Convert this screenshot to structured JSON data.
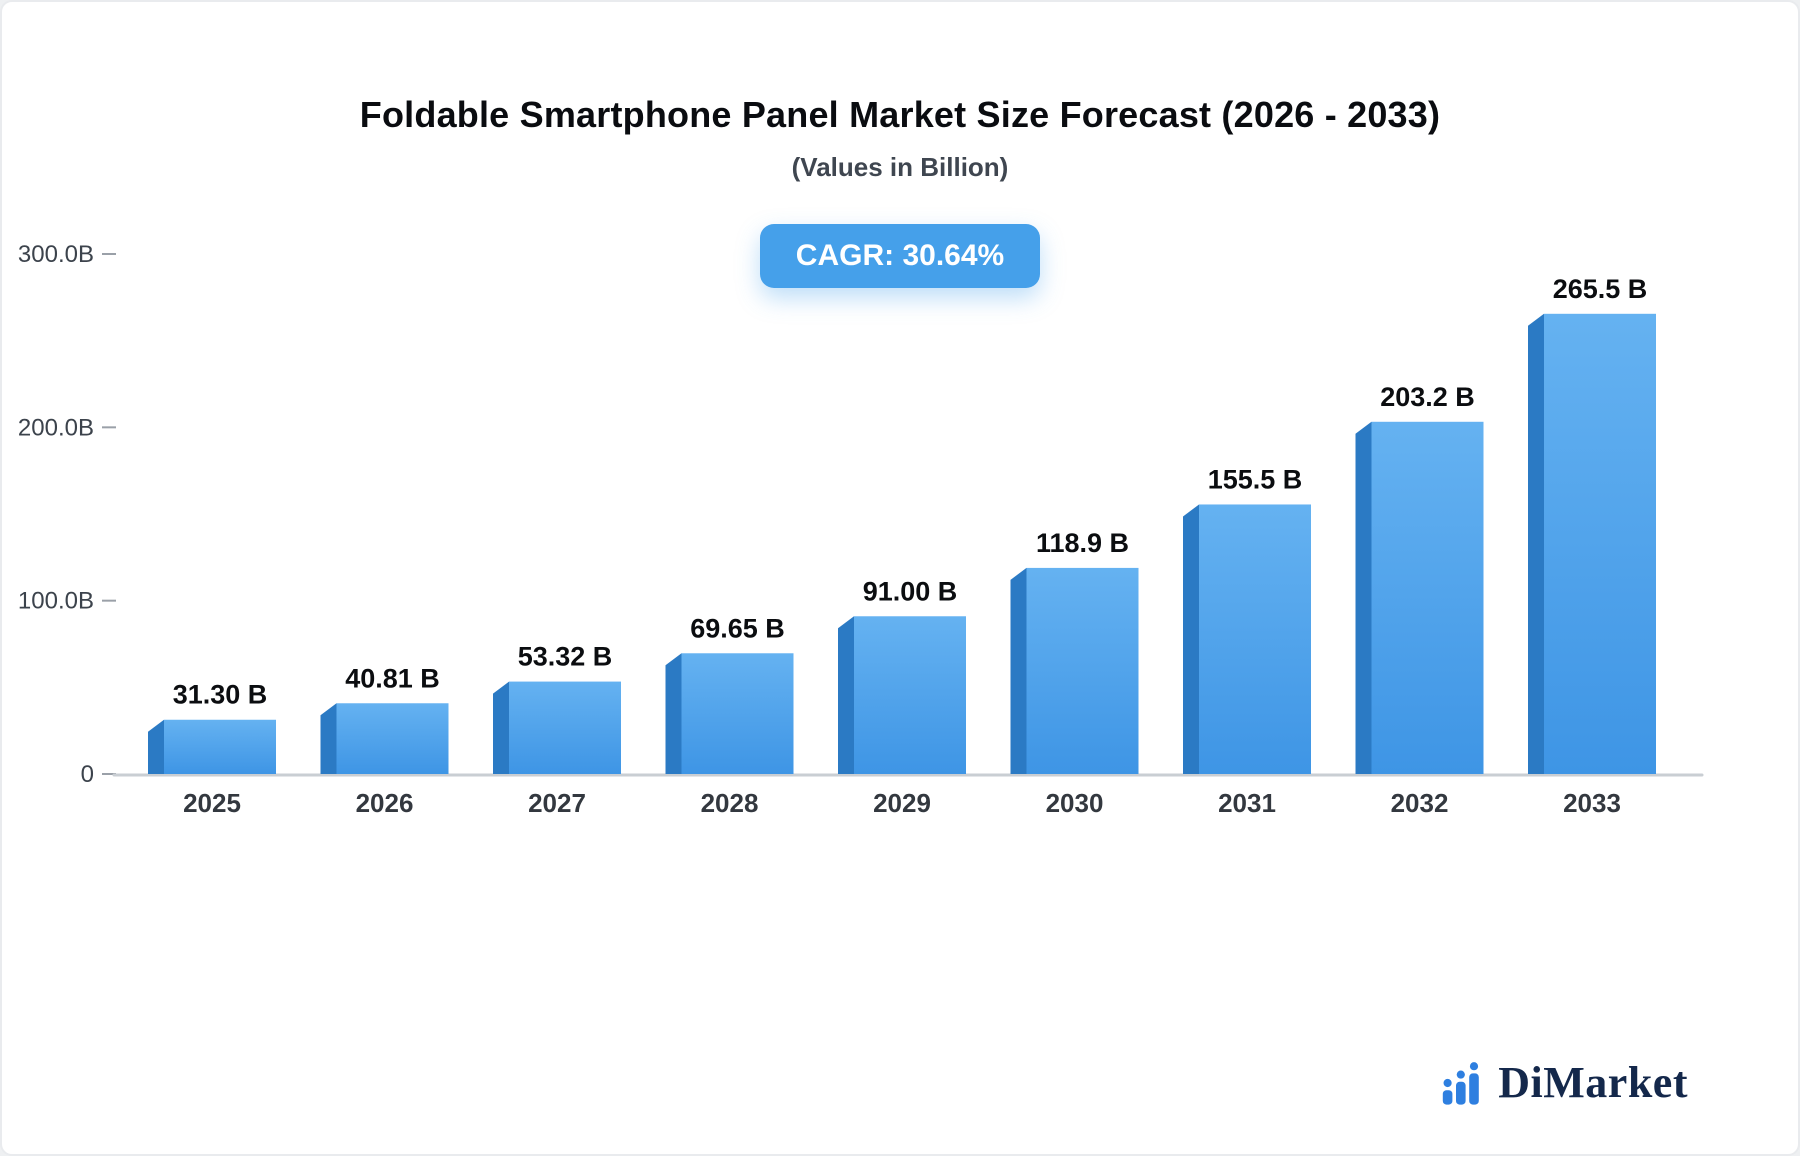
{
  "chart_data": {
    "type": "bar",
    "title": "Foldable Smartphone Panel Market Size Forecast (2026 - 2033)",
    "subtitle": "(Values in Billion)",
    "badge": "CAGR: 30.64%",
    "categories": [
      "2025",
      "2026",
      "2027",
      "2028",
      "2029",
      "2030",
      "2031",
      "2032",
      "2033"
    ],
    "values": [
      31.3,
      40.81,
      53.32,
      69.65,
      91.0,
      118.9,
      155.5,
      203.2,
      265.5
    ],
    "value_labels": [
      "31.30 B",
      "40.81 B",
      "53.32 B",
      "69.65 B",
      "91.00 B",
      "118.9 B",
      "155.5 B",
      "203.2 B",
      "265.5 B"
    ],
    "xlabel": "",
    "ylabel": "",
    "ylim": [
      0,
      300
    ],
    "yticks": [
      {
        "value": 300,
        "label": "300.0B"
      },
      {
        "value": 200,
        "label": "200.0B"
      },
      {
        "value": 100,
        "label": "100.0B"
      },
      {
        "value": 0,
        "label": "0"
      }
    ],
    "grid": false,
    "legend": false,
    "colors": {
      "bar_front_top": "#65b2f1",
      "bar_front_bottom": "#3e95e5",
      "bar_side": "#2b7ac4",
      "axis_line": "#c9ced3",
      "tick_mark": "#9aa0a8",
      "ytick_text": "#3c434c",
      "year_text": "#33383f",
      "value_text": "#0b0d10",
      "badge_bg": "#45a0ea"
    }
  },
  "logo": {
    "text": "DiMarket",
    "icon": "bar-chart-icon",
    "icon_color": "#2e7fe0",
    "text_color": "#14284b"
  }
}
